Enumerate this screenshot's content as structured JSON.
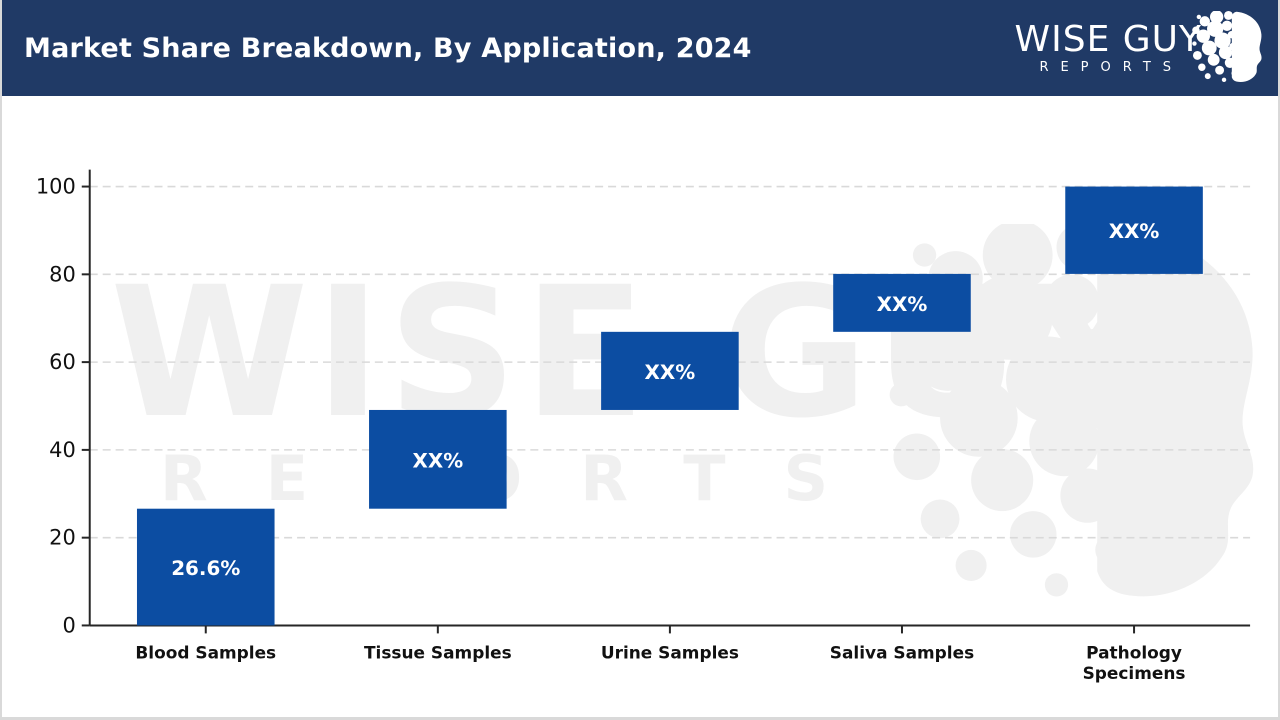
{
  "header": {
    "title": "Market Share Breakdown, By Application, 2024",
    "logo": {
      "line1": "WISE GUY",
      "line2": "REPORTS"
    }
  },
  "watermark": {
    "line1": "WISE GUY",
    "line2": "REPORTS"
  },
  "chart_data": {
    "type": "bar",
    "subtype": "waterfall",
    "title": "Market Share Breakdown, By Application, 2024",
    "categories": [
      "Blood Samples",
      "Tissue Samples",
      "Urine Samples",
      "Saliva Samples",
      "Pathology Specimens"
    ],
    "segments": [
      {
        "category": "Blood Samples",
        "start": 0,
        "end": 26.6,
        "label": "26.6%"
      },
      {
        "category": "Tissue Samples",
        "start": 26.6,
        "end": 49.1,
        "label": "XX%"
      },
      {
        "category": "Urine Samples",
        "start": 49.1,
        "end": 66.9,
        "label": "XX%"
      },
      {
        "category": "Saliva Samples",
        "start": 66.9,
        "end": 80.1,
        "label": "XX%"
      },
      {
        "category": "Pathology Specimens",
        "start": 80.1,
        "end": 100,
        "label": "XX%"
      }
    ],
    "xlabel": "",
    "ylabel": "",
    "ylim": [
      0,
      100
    ],
    "yticks": [
      0,
      20,
      40,
      60,
      80,
      100
    ],
    "grid": "horizontal-dashed",
    "legend": "none",
    "colors": {
      "bar": "#0c4da2",
      "bar_label": "#ffffff",
      "grid": "#d9d9d9",
      "axis": "#262626",
      "tick_label": "#111111",
      "header_bg": "#203a66",
      "watermark": "#f0f0f0"
    }
  }
}
